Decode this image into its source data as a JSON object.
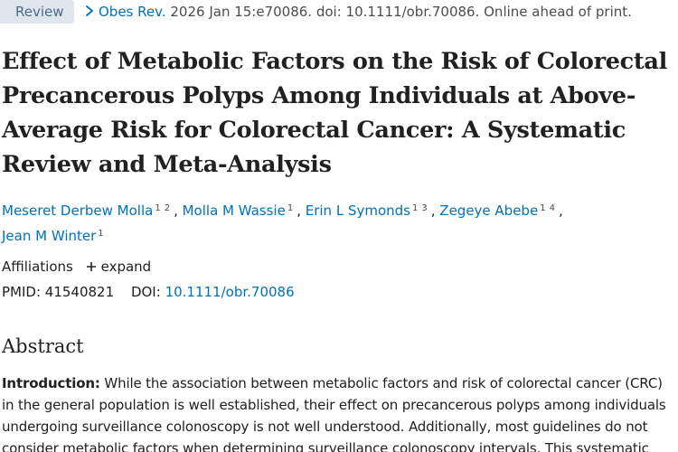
{
  "header": {
    "type_badge": "Review",
    "journal": "Obes Rev.",
    "citation": "2026 Jan 15:e70086. doi: 10.1111/obr.70086. Online ahead of print."
  },
  "article": {
    "title": "Effect of Metabolic Factors on the Risk of Colorectal Precancerous Polyps Among Individuals at Above-Average Risk for Colorectal Cancer: A Systematic Review and Meta-Analysis",
    "authors": [
      {
        "name": "Meseret Derbew Molla",
        "affs": [
          "1",
          "2"
        ]
      },
      {
        "name": "Molla M Wassie",
        "affs": [
          "1"
        ]
      },
      {
        "name": "Erin L Symonds",
        "affs": [
          "1",
          "3"
        ]
      },
      {
        "name": "Zegeye Abebe",
        "affs": [
          "1",
          "4"
        ]
      },
      {
        "name": "Jean M Winter",
        "affs": [
          "1"
        ]
      }
    ],
    "affiliations_label": "Affiliations",
    "expand_label": "expand",
    "pmid_label": "PMID:",
    "pmid": "41540821",
    "doi_label": "DOI:",
    "doi": "10.1111/obr.70086"
  },
  "abstract": {
    "heading": "Abstract",
    "intro_label": "Introduction:",
    "intro_text": " While the association between metabolic factors and risk of colorectal cancer (CRC) in the general population is well established, their effect on precancerous polyps among individuals undergoing surveillance colonoscopy is not well understood. Additionally, most guidelines do not consider metabolic factors when determining surveillance colonoscopy intervals. This systematic"
  },
  "colors": {
    "link": "#0071bc",
    "badge_bg": "#dfe6ee",
    "badge_text": "#4a6a8a",
    "text": "#212121"
  },
  "icons": {
    "journal_chevron": "chevron-right-icon",
    "expand": "plus-icon"
  }
}
